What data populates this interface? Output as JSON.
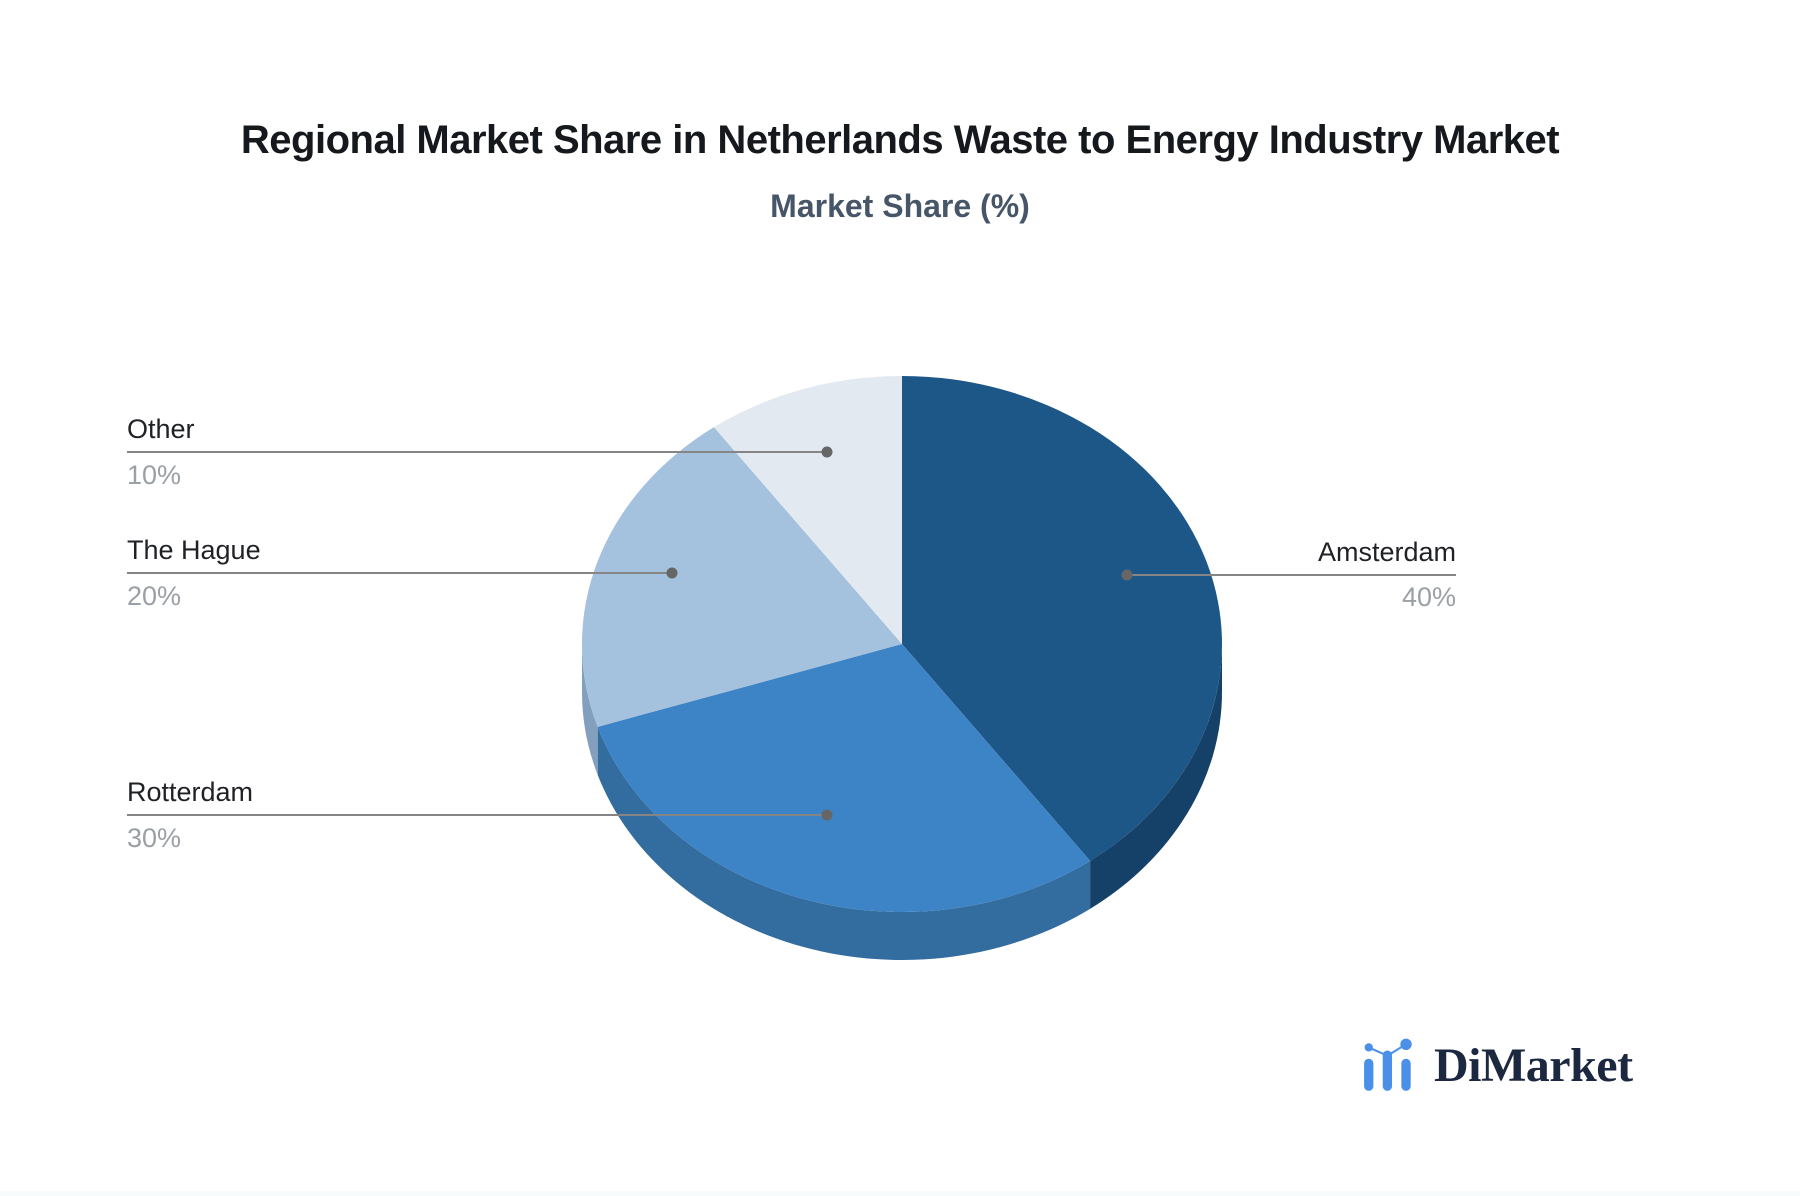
{
  "chart_data": {
    "type": "pie",
    "style": "3d",
    "title": "Regional Market Share in Netherlands Waste to Energy Industry Market",
    "subtitle": "Market Share (%)",
    "unit": "%",
    "slices": [
      {
        "label": "Amsterdam",
        "value": 40,
        "pct_text": "40%",
        "color": "#1d5788",
        "side_color": "#154067",
        "label_side": "right"
      },
      {
        "label": "Rotterdam",
        "value": 30,
        "pct_text": "30%",
        "color": "#3d84c6",
        "side_color": "#336c9e",
        "label_side": "left"
      },
      {
        "label": "The Hague",
        "value": 20,
        "pct_text": "20%",
        "color": "#a4c1de",
        "side_color": "#839fbe",
        "label_side": "left"
      },
      {
        "label": "Other",
        "value": 10,
        "pct_text": "10%",
        "color": "#e3e9f1",
        "side_color": "#bcc8d6",
        "label_side": "left"
      }
    ],
    "leader_line_color": "#858585",
    "leader_dot_color": "#666666",
    "legend": "none",
    "grid": "off"
  },
  "branding": {
    "logo_text": "DiMarket",
    "logo_icon": "bar-line-chart-icon",
    "logo_bar_color": "#4a90e8",
    "logo_text_color": "#1c2740"
  }
}
